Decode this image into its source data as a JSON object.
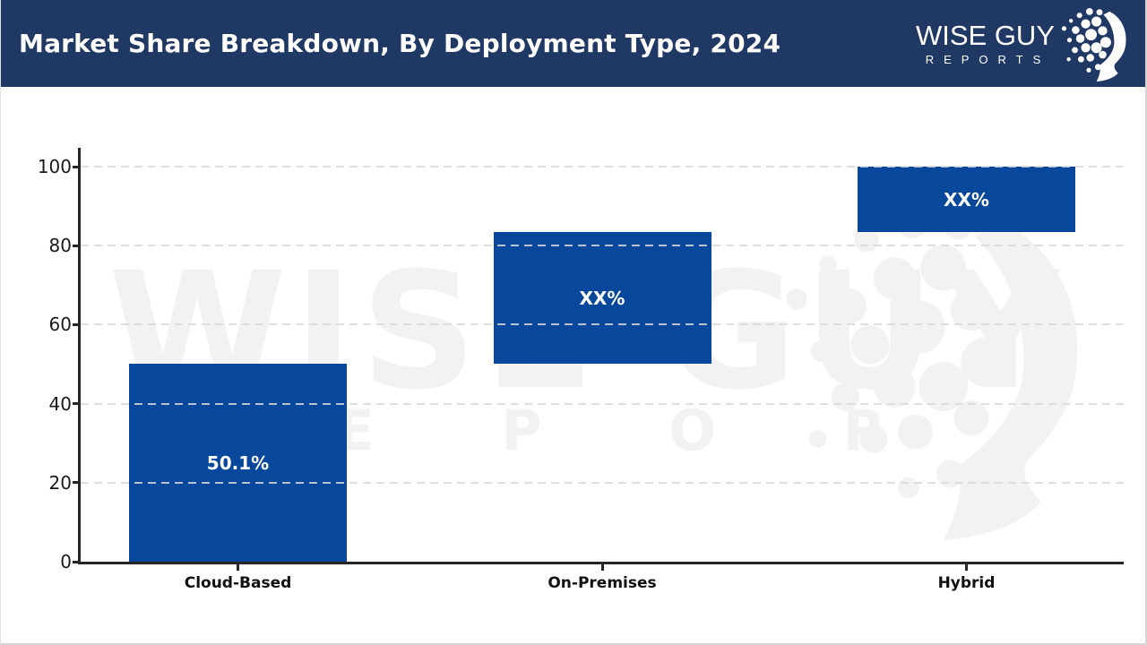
{
  "header": {
    "title": "Market Share Breakdown, By Deployment Type, 2024",
    "logo_line1": "WISE GUY",
    "logo_line2": "REPORTS"
  },
  "watermark": {
    "line1": "WISE GUY",
    "line2": "R E P O R T S"
  },
  "colors": {
    "header_bg": "#1f3864",
    "bar": "#07489c",
    "axis": "#262626",
    "grid": "#d9d9d9",
    "watermark": "#f2f2f2",
    "tick_text": "#1a1a1a"
  },
  "chart_data": {
    "type": "bar",
    "variant": "stacked-waterfall-segments",
    "title": "Market Share Breakdown, By Deployment Type, 2024",
    "xlabel": "",
    "ylabel": "",
    "categories": [
      "Cloud-Based",
      "On-Premises",
      "Hybrid"
    ],
    "segments": [
      {
        "category": "Cloud-Based",
        "start": 0,
        "end": 50.1,
        "label": "50.1%"
      },
      {
        "category": "On-Premises",
        "start": 50.1,
        "end": 83.4,
        "label": "XX%"
      },
      {
        "category": "Hybrid",
        "start": 83.4,
        "end": 100,
        "label": "XX%"
      }
    ],
    "yticks": [
      0,
      20,
      40,
      60,
      80,
      100
    ],
    "ylim": [
      0,
      104.8
    ],
    "grid": "dashed-horizontal",
    "legend": "none"
  }
}
